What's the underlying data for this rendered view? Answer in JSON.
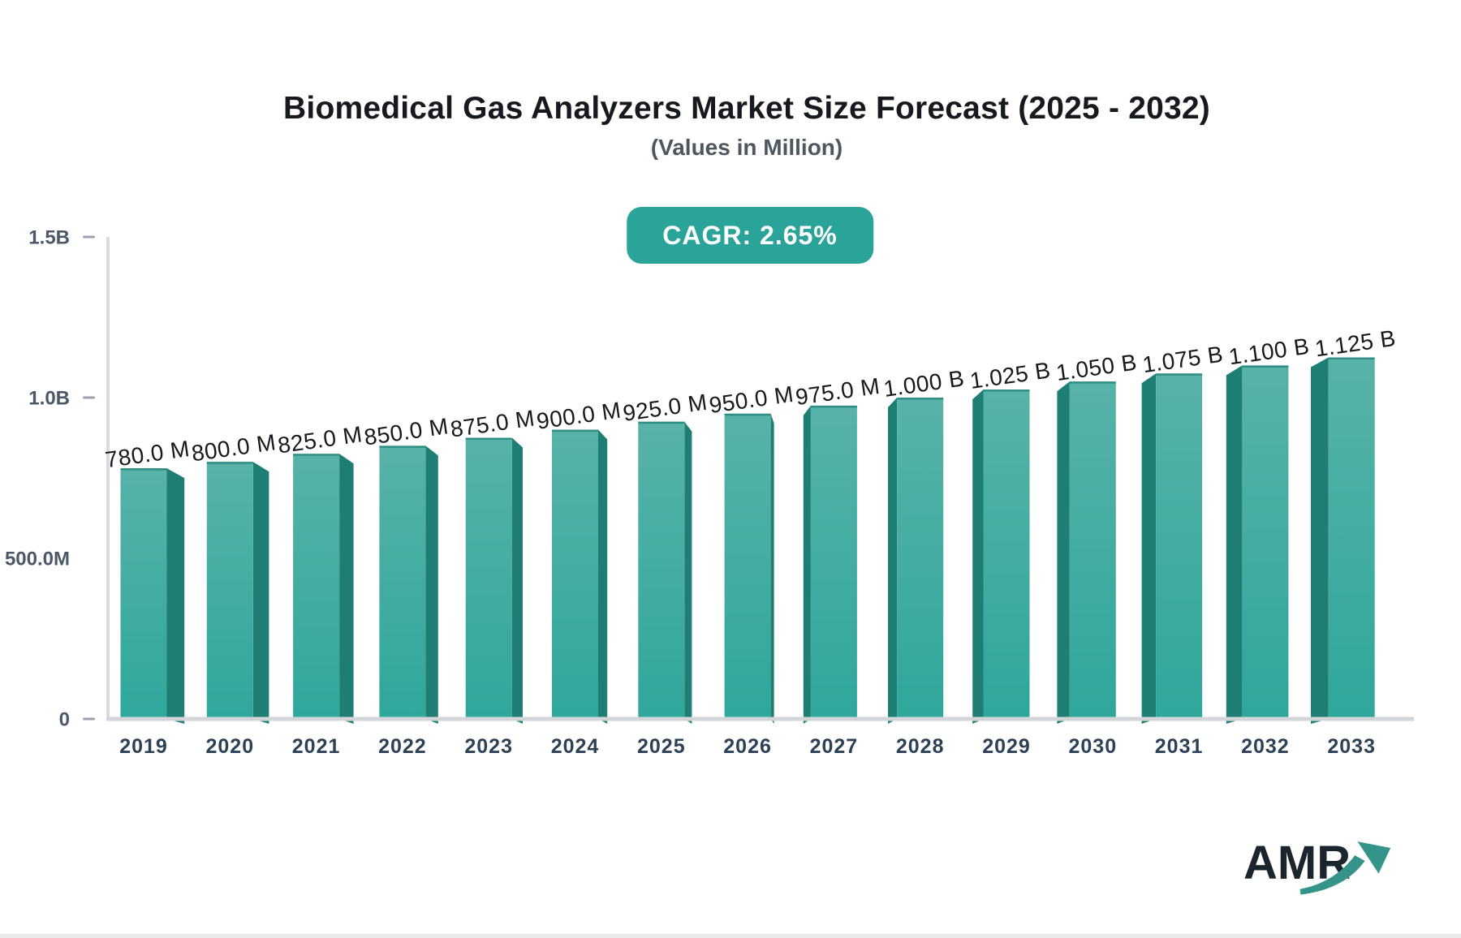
{
  "header": {
    "title": "Biomedical Gas Analyzers Market Size Forecast (2025 - 2032)",
    "subtitle": "(Values in Million)",
    "cagr_badge": "CAGR: 2.65%"
  },
  "logo": {
    "text": "AMR",
    "arrow_icon": "trend-up-arrow"
  },
  "colors": {
    "badge_bg": "#2AA498",
    "badge_text": "#FFFFFF",
    "bar_front_top": "#58B2A8",
    "bar_front_bottom": "#2EA79A",
    "bar_side": "#1E7E73",
    "bar_top_edge": "#2B8B81",
    "axis_line": "#D8DADF",
    "baseline": "#D2D5DA",
    "tick_dash": "#9BA2AC",
    "y_label": "#4C5868",
    "x_label": "#2D4156",
    "value_label": "#15181D",
    "title_text": "#16191E",
    "subtitle_text": "#4D575F",
    "logo_text": "#1B252E",
    "logo_arrow": "#35948A"
  },
  "chart_data": {
    "type": "bar",
    "title": "Biomedical Gas Analyzers Market Size Forecast (2025 - 2032)",
    "subtitle": "(Values in Million)",
    "cagr": "2.65%",
    "categories": [
      "2019",
      "2020",
      "2021",
      "2022",
      "2023",
      "2024",
      "2025",
      "2026",
      "2027",
      "2028",
      "2029",
      "2030",
      "2031",
      "2032",
      "2033"
    ],
    "values_millions": [
      780,
      800,
      825,
      850,
      875,
      900,
      925,
      950,
      975,
      1000,
      1025,
      1050,
      1075,
      1100,
      1125
    ],
    "value_labels": [
      "780.0 M",
      "800.0 M",
      "825.0 M",
      "850.0 M",
      "875.0 M",
      "900.0 M",
      "925.0 M",
      "950.0 M",
      "975.0 M",
      "1.000 B",
      "1.025 B",
      "1.050 B",
      "1.075 B",
      "1.100 B",
      "1.125 B"
    ],
    "xlabel": "",
    "ylabel": "",
    "ylim_millions": [
      0,
      1500
    ],
    "y_axis_ticks": [
      {
        "label": "1.5B",
        "value_millions": 1500,
        "dash": true
      },
      {
        "label": "1.0B",
        "value_millions": 1000,
        "dash": true
      },
      {
        "label": "500.0M",
        "value_millions": 500,
        "dash": false
      },
      {
        "label": "0",
        "value_millions": 0,
        "dash": true
      }
    ],
    "grid": "off",
    "legend": "none",
    "style": "pseudo-3d columns, teal, central vanishing point"
  }
}
